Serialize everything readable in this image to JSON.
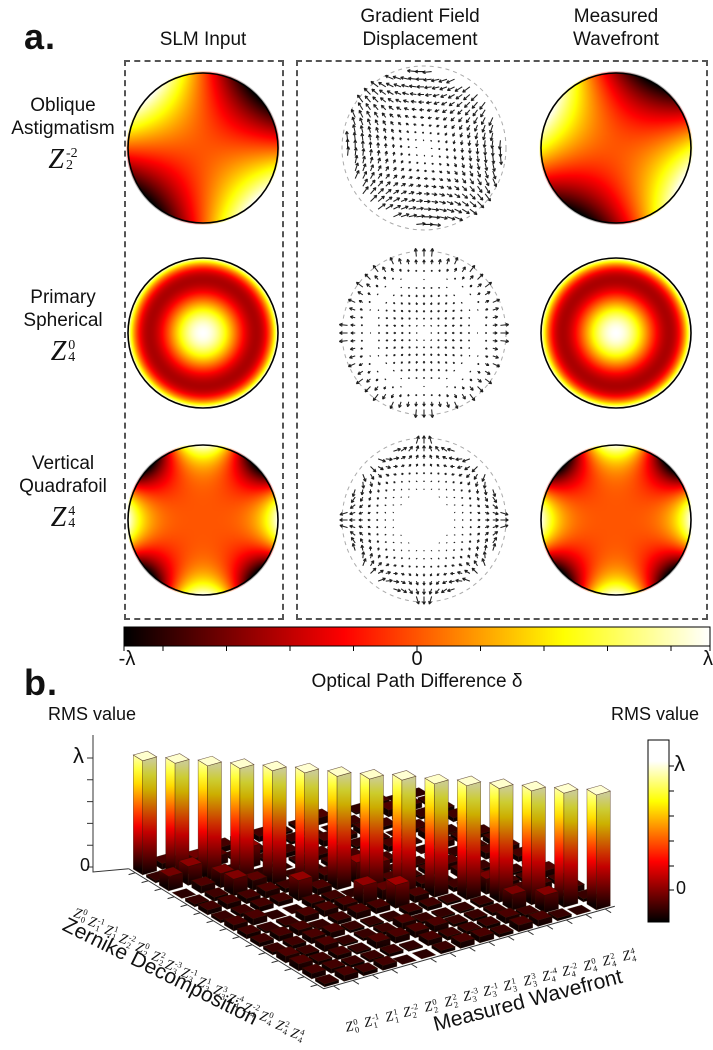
{
  "panel_a": {
    "label": "a.",
    "columns": [
      {
        "line1": "SLM Input",
        "line2": ""
      },
      {
        "line1": "Gradient Field",
        "line2": "Displacement"
      },
      {
        "line1": "Measured",
        "line2": "Wavefront"
      }
    ],
    "rows": [
      {
        "line1": "Oblique",
        "line2": "Astigmatism",
        "z_base": "Z",
        "z_sub": "2",
        "z_sup": "-2",
        "zernike_name": "Z_2^-2",
        "mode": "oblique-astigmatism"
      },
      {
        "line1": "Primary",
        "line2": "Spherical",
        "z_base": "Z",
        "z_sub": "4",
        "z_sup": "0",
        "zernike_name": "Z_4^0",
        "mode": "primary-spherical"
      },
      {
        "line1": "Vertical",
        "line2": "Quadrafoil",
        "z_base": "Z",
        "z_sub": "4",
        "z_sup": "4",
        "zernike_name": "Z_4^4",
        "mode": "vertical-quadrafoil"
      }
    ],
    "colorbar": {
      "min_label": "-λ",
      "mid_label": "0",
      "max_label": "λ",
      "caption": "Optical Path Difference δ",
      "range": [
        "-λ",
        "λ"
      ]
    }
  },
  "panel_b": {
    "label": "b.",
    "z_axis_title": "RMS value",
    "x_axis_title": "Measured Wavefront",
    "y_axis_title": "Zernike Decomposition",
    "z_ticks": {
      "max": "λ",
      "min": "0"
    },
    "zernike_base": "Z",
    "zernike_labels": [
      {
        "sub": "0",
        "sup": "0"
      },
      {
        "sub": "1",
        "sup": "-1"
      },
      {
        "sub": "1",
        "sup": "1"
      },
      {
        "sub": "2",
        "sup": "-2"
      },
      {
        "sub": "2",
        "sup": "0"
      },
      {
        "sub": "2",
        "sup": "2"
      },
      {
        "sub": "3",
        "sup": "-3"
      },
      {
        "sub": "3",
        "sup": "-1"
      },
      {
        "sub": "3",
        "sup": "1"
      },
      {
        "sub": "3",
        "sup": "3"
      },
      {
        "sub": "4",
        "sup": "-4"
      },
      {
        "sub": "4",
        "sup": "-2"
      },
      {
        "sub": "4",
        "sup": "0"
      },
      {
        "sub": "4",
        "sup": "2"
      },
      {
        "sub": "4",
        "sup": "4"
      }
    ],
    "colorbar": {
      "title": "RMS value",
      "max_label": "λ",
      "min_label": "0"
    }
  },
  "chart_data": {
    "type": "bar",
    "subtype": "3d-bar-matrix",
    "title": "Zernike decomposition RMS of measured wavefronts",
    "xlabel": "Measured Wavefront",
    "ylabel": "Zernike Decomposition",
    "zlabel": "RMS value",
    "x_categories": [
      "Z_0^0",
      "Z_1^-1",
      "Z_1^1",
      "Z_2^-2",
      "Z_2^0",
      "Z_2^2",
      "Z_3^-3",
      "Z_3^-1",
      "Z_3^1",
      "Z_3^3",
      "Z_4^-4",
      "Z_4^-2",
      "Z_4^0",
      "Z_4^2",
      "Z_4^4"
    ],
    "y_categories": [
      "Z_0^0",
      "Z_1^-1",
      "Z_1^1",
      "Z_2^-2",
      "Z_2^0",
      "Z_2^2",
      "Z_3^-3",
      "Z_3^-1",
      "Z_3^1",
      "Z_3^3",
      "Z_4^-4",
      "Z_4^-2",
      "Z_4^0",
      "Z_4^2",
      "Z_4^4"
    ],
    "zlim": [
      0,
      1
    ],
    "z_unit": "λ",
    "diagonal_values": [
      1,
      1,
      1,
      1,
      1,
      1,
      1,
      1,
      1,
      1,
      1,
      1,
      1,
      1,
      1
    ],
    "off_diagonal_values": "≈0.0–0.15 λ (noise floor)",
    "grid": true,
    "legend_position": "colorbar-right"
  },
  "colors": {
    "colormap": "hot",
    "colormap_stops": [
      "#000000",
      "#aa0000",
      "#ff5500",
      "#ffff00",
      "#ffffff"
    ],
    "text": "#111111",
    "axis": "#333333",
    "dashed_box": "#555555"
  }
}
